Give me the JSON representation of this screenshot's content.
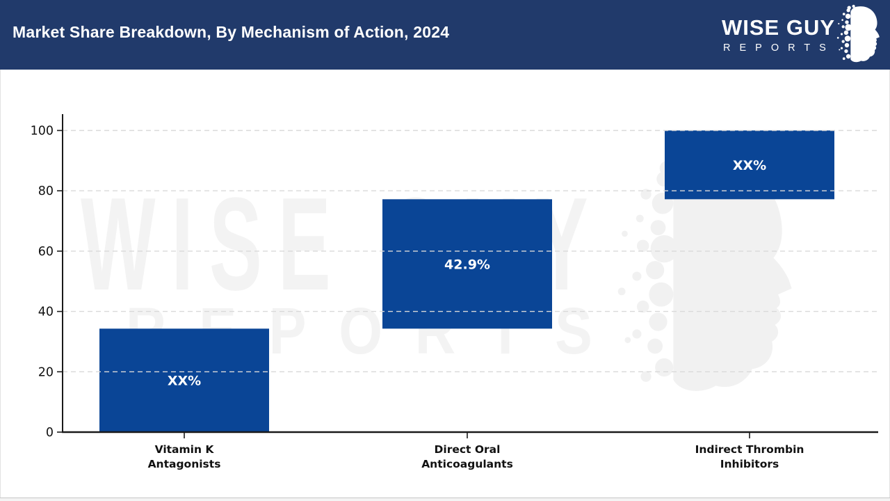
{
  "header": {
    "title": "Market Share Breakdown, By Mechanism of Action, 2024",
    "bg_color": "#213a6b",
    "logo": {
      "line1": "WISE GUY",
      "line2": "REPORTS"
    }
  },
  "watermark": {
    "line1": "WISE GUY",
    "line2": "REPORTS"
  },
  "chart_data": {
    "type": "bar",
    "subtype": "waterfall",
    "title": "Market Share Breakdown, By Mechanism of Action, 2024",
    "categories": [
      [
        "Vitamin K",
        "Antagonists"
      ],
      [
        "Direct Oral",
        "Anticoagulants"
      ],
      [
        "Indirect Thrombin",
        "Inhibitors"
      ]
    ],
    "segments": [
      {
        "name": "Vitamin K Antagonists",
        "start": 0,
        "end": 34.3,
        "value_label": "XX%"
      },
      {
        "name": "Direct Oral Anticoagulants",
        "start": 34.3,
        "end": 77.2,
        "value_label": "42.9%"
      },
      {
        "name": "Indirect Thrombin Inhibitors",
        "start": 77.2,
        "end": 100,
        "value_label": "XX%"
      }
    ],
    "ylim": [
      0,
      100
    ],
    "y_ticks": [
      0,
      20,
      40,
      60,
      80,
      100
    ],
    "xlabel": "",
    "ylabel": "",
    "grid": "horizontal-dashed",
    "legend": "none",
    "bar_color": "#0a4596",
    "value_label_color": "#ffffff",
    "axis_color": "#1a1a1a",
    "grid_color": "#d9d9d9"
  }
}
